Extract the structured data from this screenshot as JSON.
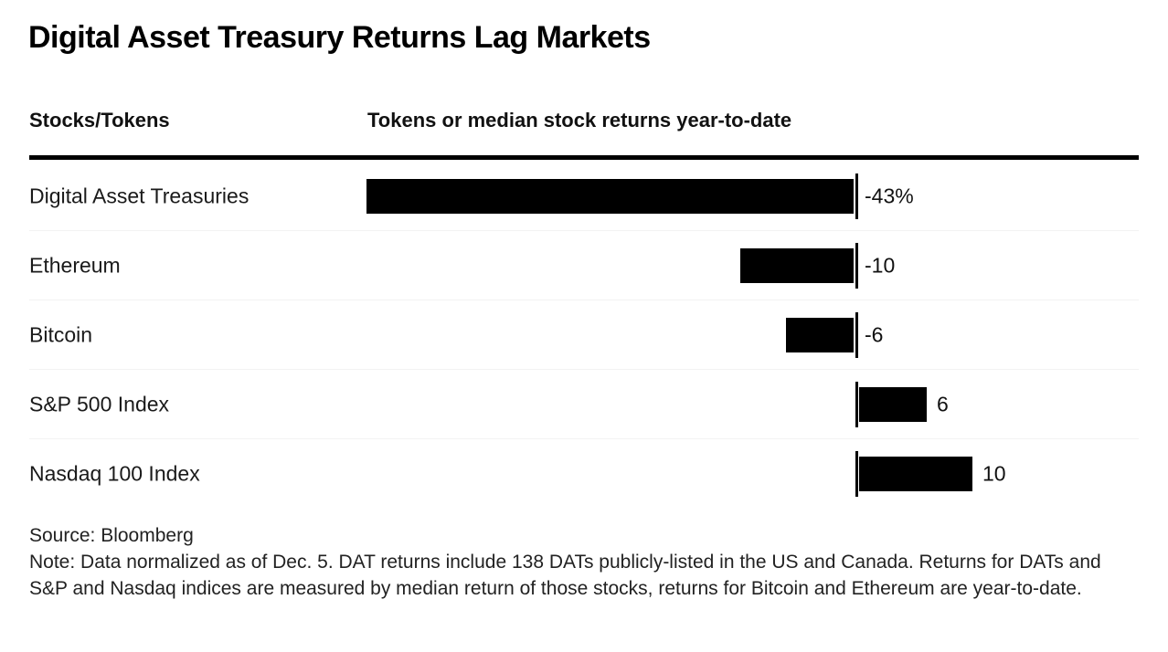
{
  "title": "Digital Asset Treasury Returns Lag Markets",
  "columns": {
    "left": "Stocks/Tokens",
    "right": "Tokens or median stock returns year-to-date"
  },
  "chart_data": {
    "type": "bar",
    "orientation": "horizontal",
    "title": "Digital Asset Treasury Returns Lag Markets",
    "categories": [
      "Digital Asset Treasuries",
      "Ethereum",
      "Bitcoin",
      "S&P 500 Index",
      "Nasdaq 100 Index"
    ],
    "values": [
      -43,
      -10,
      -6,
      6,
      10
    ],
    "value_labels": [
      "-43%",
      "-10",
      "-6",
      "6",
      "10"
    ],
    "units": "percent return year-to-date",
    "bar_color": "#000000",
    "baseline": 0,
    "xlim": [
      -43,
      10
    ],
    "grid": false,
    "legend": false
  },
  "footer": {
    "source": "Source: Bloomberg",
    "note": "Note: Data normalized as of Dec. 5. DAT returns include 138 DATs publicly-listed in the US and Canada. Returns for DATs and S&P and Nasdaq indices are measured by median return of those stocks, returns for Bitcoin and Ethereum are year-to-date."
  }
}
